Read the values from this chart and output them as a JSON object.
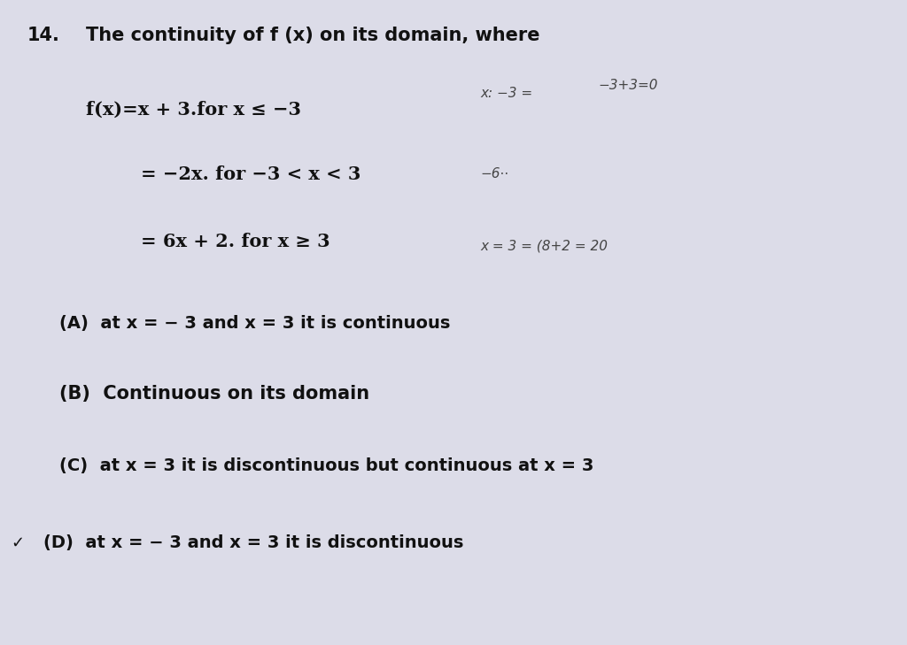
{
  "background_color": "#dcdce8",
  "question_number": "14.",
  "font_color": "#111111",
  "handwritten_color": "#444444",
  "title_line": "The continuity of f (x) on its domain, where",
  "func_line1": "f(x)=x + 3.for x ≤ −3",
  "func_line2": "= −2x. for −3 < x < 3",
  "func_line3": "= 6x + 2. for x ≥ 3",
  "hw_line1a": "x: −3 =",
  "hw_line1b": "−3+3=0",
  "hw_line2": "−6⋅⋅",
  "hw_line3": "x = 3 = (8+2 = 20",
  "optA": "(A)  at x = − 3 and x = 3 it is continuous",
  "optB": "(B)  Continuous on its domain",
  "optC": "(C)  at x = 3 it is discontinuous but continuous at x = 3",
  "optD": "(D)  at x = − 3 and x = 3 it is discontinuous",
  "checkmark": "✓"
}
